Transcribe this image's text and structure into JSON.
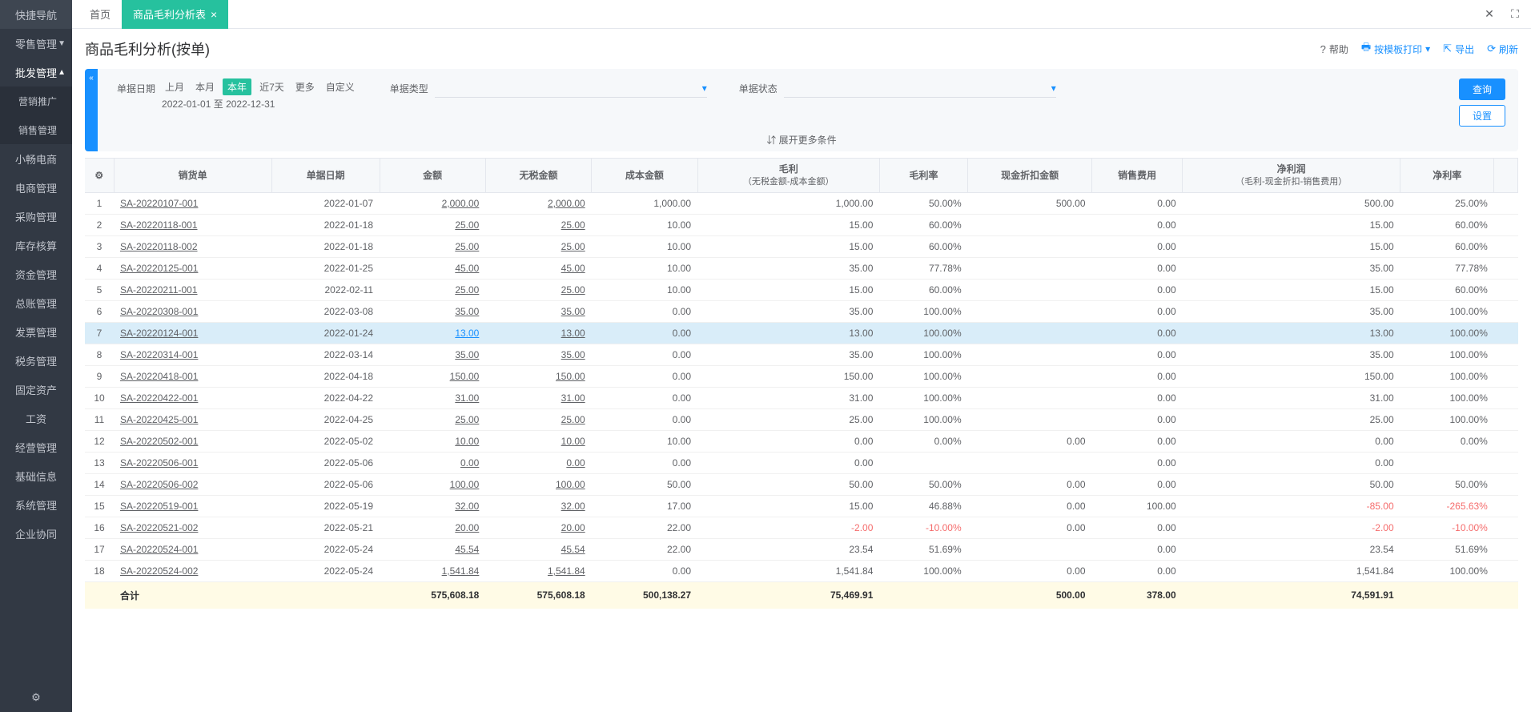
{
  "sidebar": {
    "items": [
      {
        "label": "快捷导航",
        "caret": null
      },
      {
        "label": "零售管理",
        "caret": "▼"
      },
      {
        "label": "批发管理",
        "caret": "▲",
        "active": true,
        "subs": [
          "营销推广",
          "销售管理"
        ]
      },
      {
        "label": "小畅电商",
        "caret": null
      },
      {
        "label": "电商管理",
        "caret": null
      },
      {
        "label": "采购管理",
        "caret": null
      },
      {
        "label": "库存核算",
        "caret": null
      },
      {
        "label": "资金管理",
        "caret": null
      },
      {
        "label": "总账管理",
        "caret": null
      },
      {
        "label": "发票管理",
        "caret": null
      },
      {
        "label": "税务管理",
        "caret": null
      },
      {
        "label": "固定资产",
        "caret": null
      },
      {
        "label": "工资",
        "caret": null
      },
      {
        "label": "经营管理",
        "caret": null
      },
      {
        "label": "基础信息",
        "caret": null
      },
      {
        "label": "系统管理",
        "caret": null
      },
      {
        "label": "企业协同",
        "caret": null
      }
    ]
  },
  "tabs": {
    "home": "首页",
    "active": "商品毛利分析表"
  },
  "page": {
    "title": "商品毛利分析(按单)"
  },
  "actions": {
    "help": "帮助",
    "print": "按模板打印",
    "export": "导出",
    "refresh": "刷新"
  },
  "filter": {
    "date_label": "单据日期",
    "shortcuts": [
      "上月",
      "本月",
      "本年",
      "近7天",
      "更多",
      "自定义"
    ],
    "active_shortcut": "本年",
    "date_range": "2022-01-01 至 2022-12-31",
    "type_label": "单据类型",
    "status_label": "单据状态",
    "query": "查询",
    "settings": "设置",
    "expand_more": "展开更多条件"
  },
  "table": {
    "columns": [
      {
        "label": "销货单"
      },
      {
        "label": "单据日期"
      },
      {
        "label": "金额"
      },
      {
        "label": "无税金额"
      },
      {
        "label": "成本金额"
      },
      {
        "label": "毛利",
        "sub": "（无税金额-成本金额）"
      },
      {
        "label": "毛利率"
      },
      {
        "label": "现金折扣金额"
      },
      {
        "label": "销售费用"
      },
      {
        "label": "净利润",
        "sub": "（毛利-现金折扣-销售费用）"
      },
      {
        "label": "净利率"
      }
    ],
    "rows": [
      {
        "doc": "SA-20220107-001",
        "date": "2022-01-07",
        "amt": "2,000.00",
        "noTax": "2,000.00",
        "cost": "1,000.00",
        "gross": "1,000.00",
        "grossRate": "50.00%",
        "disc": "500.00",
        "fee": "0.00",
        "net": "500.00",
        "netRate": "25.00%"
      },
      {
        "doc": "SA-20220118-001",
        "date": "2022-01-18",
        "amt": "25.00",
        "noTax": "25.00",
        "cost": "10.00",
        "gross": "15.00",
        "grossRate": "60.00%",
        "disc": "",
        "fee": "0.00",
        "net": "15.00",
        "netRate": "60.00%"
      },
      {
        "doc": "SA-20220118-002",
        "date": "2022-01-18",
        "amt": "25.00",
        "noTax": "25.00",
        "cost": "10.00",
        "gross": "15.00",
        "grossRate": "60.00%",
        "disc": "",
        "fee": "0.00",
        "net": "15.00",
        "netRate": "60.00%"
      },
      {
        "doc": "SA-20220125-001",
        "date": "2022-01-25",
        "amt": "45.00",
        "noTax": "45.00",
        "cost": "10.00",
        "gross": "35.00",
        "grossRate": "77.78%",
        "disc": "",
        "fee": "0.00",
        "net": "35.00",
        "netRate": "77.78%"
      },
      {
        "doc": "SA-20220211-001",
        "date": "2022-02-11",
        "amt": "25.00",
        "noTax": "25.00",
        "cost": "10.00",
        "gross": "15.00",
        "grossRate": "60.00%",
        "disc": "",
        "fee": "0.00",
        "net": "15.00",
        "netRate": "60.00%"
      },
      {
        "doc": "SA-20220308-001",
        "date": "2022-03-08",
        "amt": "35.00",
        "noTax": "35.00",
        "cost": "0.00",
        "gross": "35.00",
        "grossRate": "100.00%",
        "disc": "",
        "fee": "0.00",
        "net": "35.00",
        "netRate": "100.00%"
      },
      {
        "doc": "SA-20220124-001",
        "date": "2022-01-24",
        "amt": "13.00",
        "noTax": "13.00",
        "cost": "0.00",
        "gross": "13.00",
        "grossRate": "100.00%",
        "disc": "",
        "fee": "0.00",
        "net": "13.00",
        "netRate": "100.00%",
        "hover": true,
        "hl": true
      },
      {
        "doc": "SA-20220314-001",
        "date": "2022-03-14",
        "amt": "35.00",
        "noTax": "35.00",
        "cost": "0.00",
        "gross": "35.00",
        "grossRate": "100.00%",
        "disc": "",
        "fee": "0.00",
        "net": "35.00",
        "netRate": "100.00%"
      },
      {
        "doc": "SA-20220418-001",
        "date": "2022-04-18",
        "amt": "150.00",
        "noTax": "150.00",
        "cost": "0.00",
        "gross": "150.00",
        "grossRate": "100.00%",
        "disc": "",
        "fee": "0.00",
        "net": "150.00",
        "netRate": "100.00%"
      },
      {
        "doc": "SA-20220422-001",
        "date": "2022-04-22",
        "amt": "31.00",
        "noTax": "31.00",
        "cost": "0.00",
        "gross": "31.00",
        "grossRate": "100.00%",
        "disc": "",
        "fee": "0.00",
        "net": "31.00",
        "netRate": "100.00%"
      },
      {
        "doc": "SA-20220425-001",
        "date": "2022-04-25",
        "amt": "25.00",
        "noTax": "25.00",
        "cost": "0.00",
        "gross": "25.00",
        "grossRate": "100.00%",
        "disc": "",
        "fee": "0.00",
        "net": "25.00",
        "netRate": "100.00%"
      },
      {
        "doc": "SA-20220502-001",
        "date": "2022-05-02",
        "amt": "10.00",
        "noTax": "10.00",
        "cost": "10.00",
        "gross": "0.00",
        "grossRate": "0.00%",
        "disc": "0.00",
        "fee": "0.00",
        "net": "0.00",
        "netRate": "0.00%"
      },
      {
        "doc": "SA-20220506-001",
        "date": "2022-05-06",
        "amt": "0.00",
        "noTax": "0.00",
        "cost": "0.00",
        "gross": "0.00",
        "grossRate": "",
        "disc": "",
        "fee": "0.00",
        "net": "0.00",
        "netRate": ""
      },
      {
        "doc": "SA-20220506-002",
        "date": "2022-05-06",
        "amt": "100.00",
        "noTax": "100.00",
        "cost": "50.00",
        "gross": "50.00",
        "grossRate": "50.00%",
        "disc": "0.00",
        "fee": "0.00",
        "net": "50.00",
        "netRate": "50.00%"
      },
      {
        "doc": "SA-20220519-001",
        "date": "2022-05-19",
        "amt": "32.00",
        "noTax": "32.00",
        "cost": "17.00",
        "gross": "15.00",
        "grossRate": "46.88%",
        "disc": "0.00",
        "fee": "100.00",
        "net": "-85.00",
        "netRate": "-265.63%",
        "negNet": true
      },
      {
        "doc": "SA-20220521-002",
        "date": "2022-05-21",
        "amt": "20.00",
        "noTax": "20.00",
        "cost": "22.00",
        "gross": "-2.00",
        "grossRate": "-10.00%",
        "disc": "0.00",
        "fee": "0.00",
        "net": "-2.00",
        "netRate": "-10.00%",
        "negGross": true,
        "negNet": true
      },
      {
        "doc": "SA-20220524-001",
        "date": "2022-05-24",
        "amt": "45.54",
        "noTax": "45.54",
        "cost": "22.00",
        "gross": "23.54",
        "grossRate": "51.69%",
        "disc": "",
        "fee": "0.00",
        "net": "23.54",
        "netRate": "51.69%"
      },
      {
        "doc": "SA-20220524-002",
        "date": "2022-05-24",
        "amt": "1,541.84",
        "noTax": "1,541.84",
        "cost": "0.00",
        "gross": "1,541.84",
        "grossRate": "100.00%",
        "disc": "0.00",
        "fee": "0.00",
        "net": "1,541.84",
        "netRate": "100.00%"
      }
    ],
    "total": {
      "label": "合计",
      "amt": "575,608.18",
      "noTax": "575,608.18",
      "cost": "500,138.27",
      "gross": "75,469.91",
      "disc": "500.00",
      "fee": "378.00",
      "net": "74,591.91"
    }
  }
}
